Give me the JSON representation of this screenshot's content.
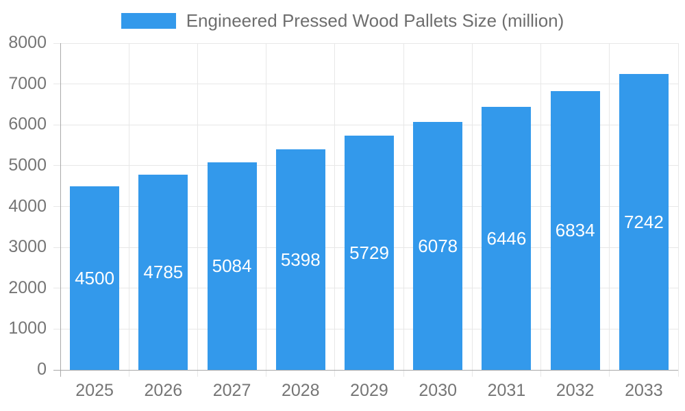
{
  "legend": {
    "series_label": "Engineered Pressed Wood Pallets Size (million)"
  },
  "chart_data": {
    "type": "bar",
    "title": "Engineered Pressed Wood Pallets Size (million)",
    "categories": [
      "2025",
      "2026",
      "2027",
      "2028",
      "2029",
      "2030",
      "2031",
      "2032",
      "2033"
    ],
    "values": [
      4500,
      4785,
      5084,
      5398,
      5729,
      6078,
      6446,
      6834,
      7242
    ],
    "xlabel": "",
    "ylabel": "",
    "ylim": [
      0,
      8000
    ],
    "yticks": [
      0,
      1000,
      2000,
      3000,
      4000,
      5000,
      6000,
      7000,
      8000
    ],
    "grid": true,
    "legend_position": "top",
    "value_label_position": "inside-center"
  },
  "colors": {
    "bar": "#3399EB",
    "grid_line": "#e7e7e7",
    "axis_line": "#a8a8a8",
    "tick_text": "#757575",
    "legend_text": "#6e6e6e",
    "value_label_text": "#ffffff",
    "background": "#ffffff"
  }
}
